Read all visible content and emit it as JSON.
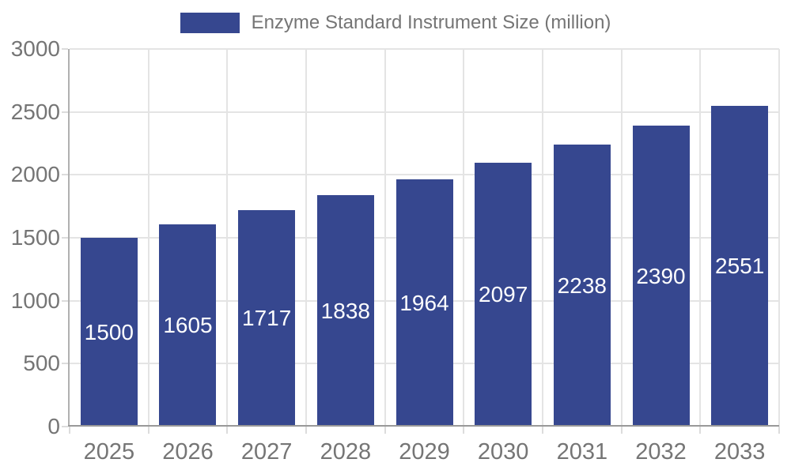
{
  "chart_data": {
    "type": "bar",
    "title": "Enzyme Standard Instrument Size (million)",
    "legend": {
      "position": "top-center",
      "entries": [
        "Enzyme Standard Instrument Size (million)"
      ]
    },
    "categories": [
      "2025",
      "2026",
      "2027",
      "2028",
      "2029",
      "2030",
      "2031",
      "2032",
      "2033"
    ],
    "series": [
      {
        "name": "Enzyme Standard Instrument Size (million)",
        "values": [
          1500,
          1605,
          1717,
          1838,
          1964,
          2097,
          2238,
          2390,
          2551
        ]
      }
    ],
    "xlabel": "",
    "ylabel": "",
    "ylim": [
      0,
      3000
    ],
    "yticks": [
      0,
      500,
      1000,
      1500,
      2000,
      2500,
      3000
    ],
    "grid": true,
    "value_label_position": "inside-center"
  },
  "colors": {
    "bar": "#36478f",
    "legend_text": "#757575",
    "axis_text": "#757575",
    "value_label": "#ffffff",
    "grid_line": "#e4e4e4",
    "tick_mark": "#dcdcdc",
    "y_axis_line": "#b0b0b0",
    "x_axis_line": "#999999",
    "background": "#ffffff"
  }
}
